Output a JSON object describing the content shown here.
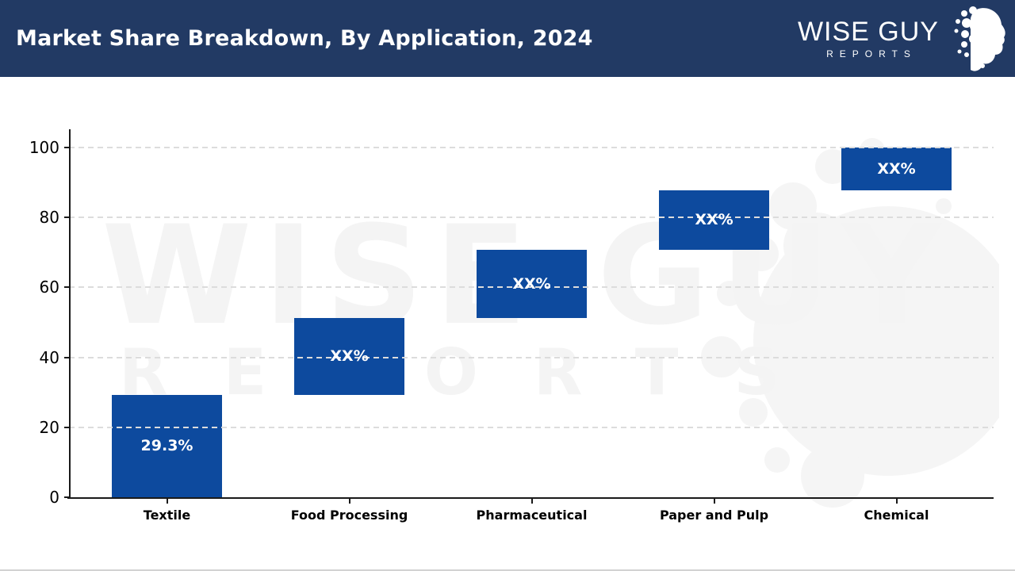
{
  "header": {
    "title": "Market Share Breakdown, By Application, 2024",
    "logo": {
      "line1": "WISE GUY",
      "line2": "REPORTS"
    }
  },
  "watermark": {
    "line1": "WISE GUY",
    "line2": "REPORTS"
  },
  "chart_data": {
    "type": "bar",
    "subtype": "floating-waterfall",
    "title": "Market Share Breakdown, By Application, 2024",
    "categories": [
      "Textile",
      "Food Processing",
      "Pharmaceutical",
      "Paper and Pulp",
      "Chemical"
    ],
    "segments": [
      {
        "category": "Textile",
        "start": 0,
        "end": 29.3,
        "label": "29.3%"
      },
      {
        "category": "Food Processing",
        "start": 29.3,
        "end": 51.3,
        "label": "XX%"
      },
      {
        "category": "Pharmaceutical",
        "start": 51.3,
        "end": 70.8,
        "label": "XX%"
      },
      {
        "category": "Paper and Pulp",
        "start": 70.8,
        "end": 87.8,
        "label": "XX%"
      },
      {
        "category": "Chemical",
        "start": 87.8,
        "end": 100,
        "label": "XX%"
      }
    ],
    "xlabel": "",
    "ylabel": "",
    "yticks": [
      0,
      20,
      40,
      60,
      80,
      100
    ],
    "ylim": [
      0,
      105
    ],
    "grid": "horizontal-dashed",
    "legend": "none"
  },
  "colors": {
    "header_bg": "#223a64",
    "bar": "#0d4a9e",
    "bar_label": "#ffffff",
    "grid": "#dcdcdc",
    "axis": "#1a1a1a",
    "watermark": "#f4f4f4"
  }
}
